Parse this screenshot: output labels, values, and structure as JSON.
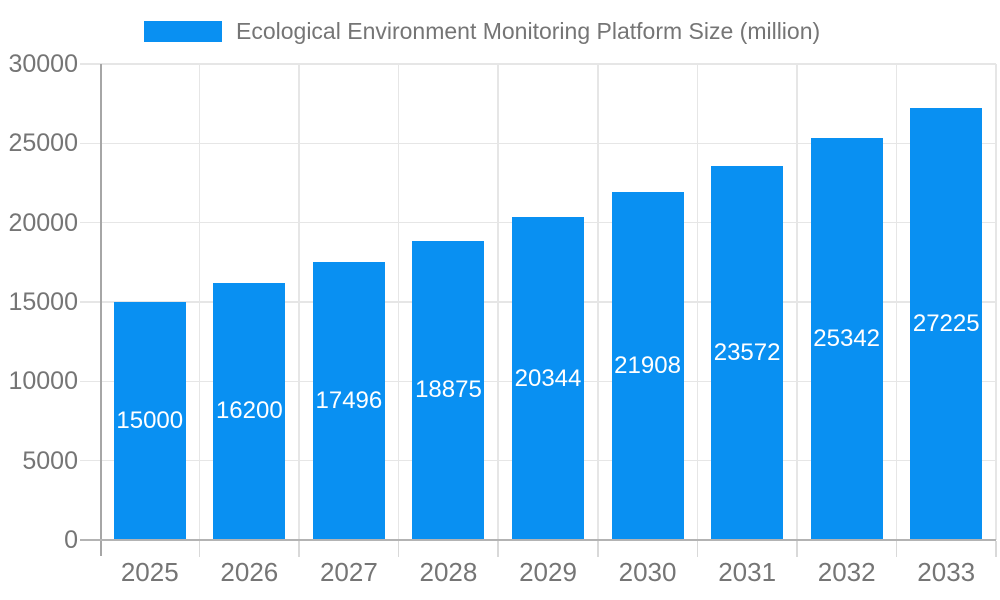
{
  "chart_data": {
    "type": "bar",
    "title": "Ecological Environment Monitoring Platform Size (million)",
    "categories": [
      "2025",
      "2026",
      "2027",
      "2028",
      "2029",
      "2030",
      "2031",
      "2032",
      "2033"
    ],
    "values": [
      15000,
      16200,
      17496,
      18875,
      20344,
      21908,
      23572,
      25342,
      27225
    ],
    "xlabel": "",
    "ylabel": "",
    "ylim": [
      0,
      30000
    ],
    "yticks": [
      0,
      5000,
      10000,
      15000,
      20000,
      25000,
      30000
    ],
    "grid": true,
    "legend_position": "top",
    "bar_color": "#0990f2",
    "bar_label_color": "#ffffff",
    "axis_label_color": "#757575",
    "gridline_color": "#e6e6e6",
    "y_axis_line_color": "#a6a6a6",
    "x_axis_line_color": "#b3b3b3",
    "x_tick_color": "#d9d9d9"
  }
}
